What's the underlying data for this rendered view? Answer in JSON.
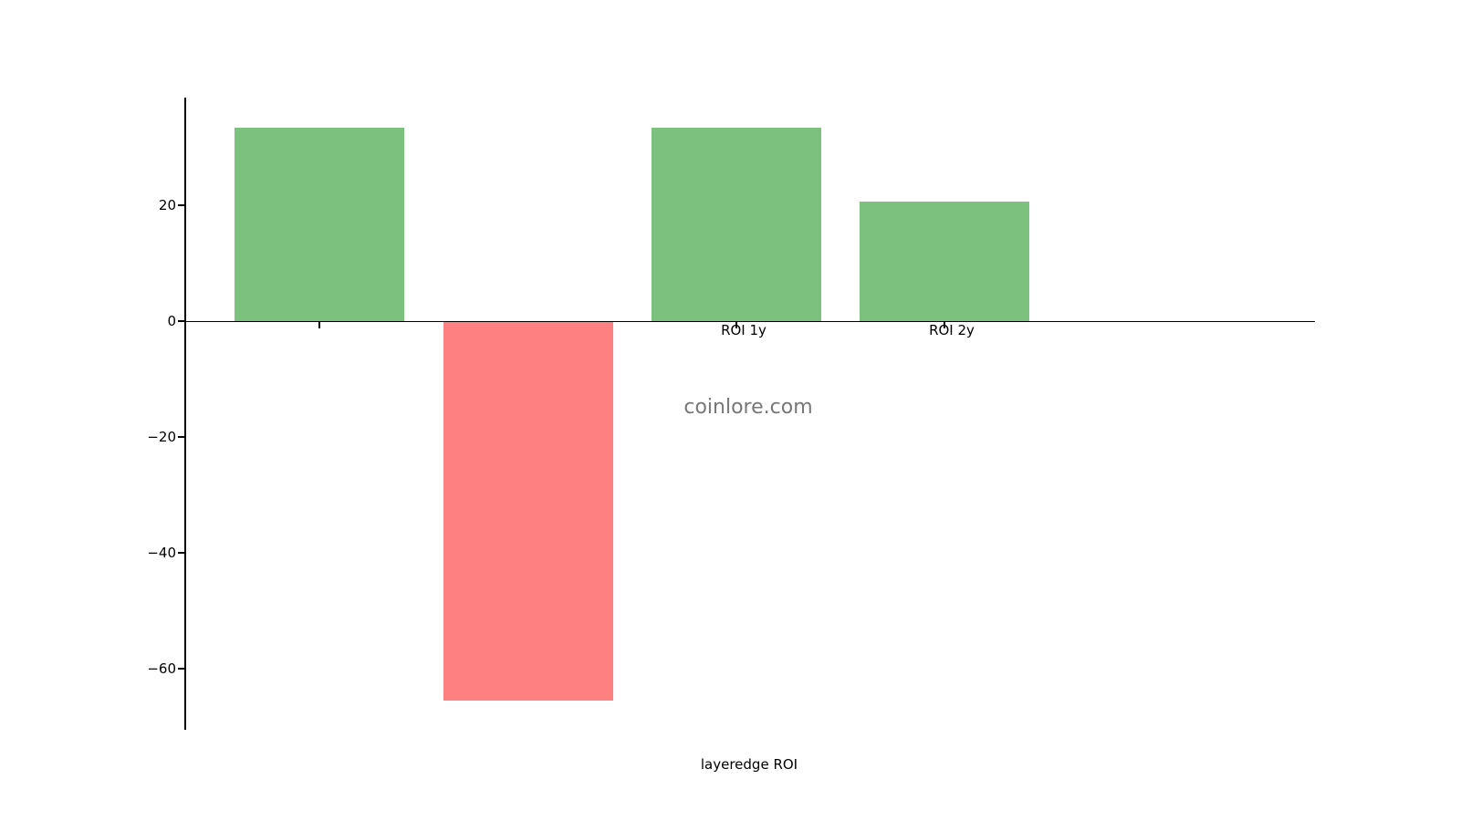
{
  "page": {
    "background": "#ffffff"
  },
  "watermark": {
    "text": "coinlore.com",
    "color": "#777777"
  },
  "chart_data": {
    "type": "bar",
    "title": "",
    "xlabel": "layeredge ROI",
    "ylabel": "",
    "categories": [
      "",
      "",
      "ROI 1y",
      "ROI 2y"
    ],
    "values": [
      33.4,
      -65.3,
      33.4,
      20.7
    ],
    "bar_colors": [
      "#7cc17e",
      "#ff8080",
      "#7cc17e",
      "#7cc17e"
    ],
    "positive_color": "#7cc17e",
    "negative_color": "#ff8080",
    "axis_color": "#000000",
    "yticks": [
      20,
      0,
      -20,
      -40,
      -60
    ],
    "ytick_labels": [
      "20",
      "0",
      "−20",
      "−40",
      "−60"
    ],
    "ylim": [
      -70.5,
      38.5
    ],
    "grid": false,
    "legend": false,
    "watermark": "coinlore.com"
  }
}
